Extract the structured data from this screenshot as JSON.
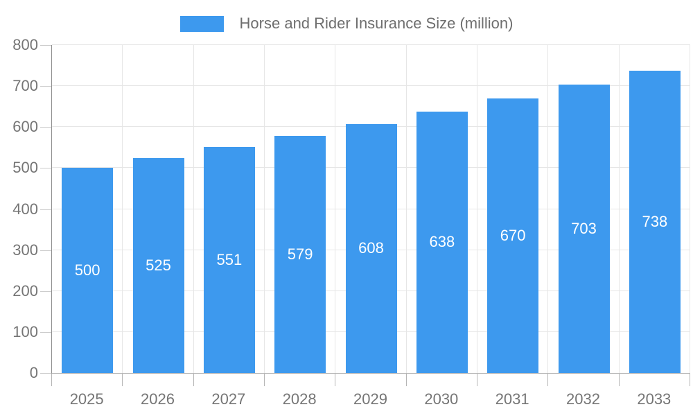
{
  "legend": {
    "label": "Horse and Rider Insurance Size (million)"
  },
  "chart_data": {
    "type": "bar",
    "title": "Horse and Rider Insurance Size (million)",
    "legend_position": "top",
    "categories": [
      "2025",
      "2026",
      "2027",
      "2028",
      "2029",
      "2030",
      "2031",
      "2032",
      "2033"
    ],
    "values": [
      500,
      525,
      551,
      579,
      608,
      638,
      670,
      703,
      738
    ],
    "xlabel": "",
    "ylabel": "",
    "ylim": [
      0,
      800
    ],
    "ytick_step": 100,
    "yticks": [
      0,
      100,
      200,
      300,
      400,
      500,
      600,
      700,
      800
    ],
    "grid": true,
    "bar_labels_visible": true,
    "colors": {
      "bar": "#3d99ee",
      "bar_label": "#ffffff",
      "axis_text": "#757575",
      "legend_text": "#6e6e6e",
      "gridline": "#e6e6e6",
      "y_axis_line": "#909090",
      "x_axis_line": "#b5b5b5"
    }
  }
}
